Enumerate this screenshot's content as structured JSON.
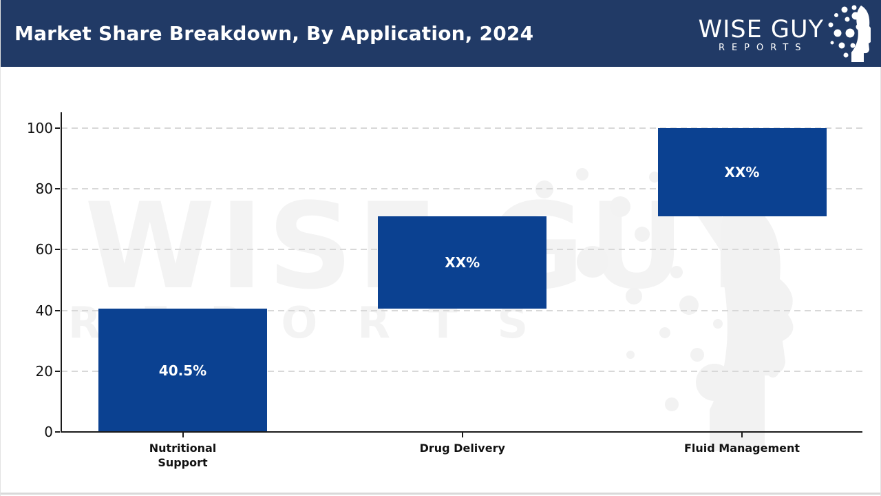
{
  "header": {
    "title": "Market Share Breakdown, By Application, 2024",
    "logo": {
      "name": "WISE GUY",
      "sub": "REPORTS"
    }
  },
  "watermark": {
    "line1": "WISE GUY",
    "line2": "REPORTS"
  },
  "chart_data": {
    "type": "bar",
    "variant": "floating-waterfall",
    "title": "Market Share Breakdown, By Application, 2024",
    "categories": [
      "Nutritional\nSupport",
      "Drug Delivery",
      "Fluid Management"
    ],
    "bars": [
      {
        "category": "Nutritional Support",
        "start": 0,
        "end": 40.5,
        "label": "40.5%"
      },
      {
        "category": "Drug Delivery",
        "start": 40.5,
        "end": 71,
        "label": "XX%"
      },
      {
        "category": "Fluid Management",
        "start": 71,
        "end": 100,
        "label": "XX%"
      }
    ],
    "xlabel": "",
    "ylabel": "",
    "yticks": [
      0,
      20,
      40,
      60,
      80,
      100
    ],
    "ylim": [
      0,
      105
    ],
    "grid": {
      "horizontal": true,
      "style": "dashed"
    },
    "legend": null,
    "bar_color": "#0b4191",
    "value_label_color": "#ffffff",
    "colors": {
      "header_bg": "#213a66",
      "axis": "#1a1a1a",
      "gridline": "#d8d8d8",
      "watermark": "#f3f3f3"
    }
  }
}
